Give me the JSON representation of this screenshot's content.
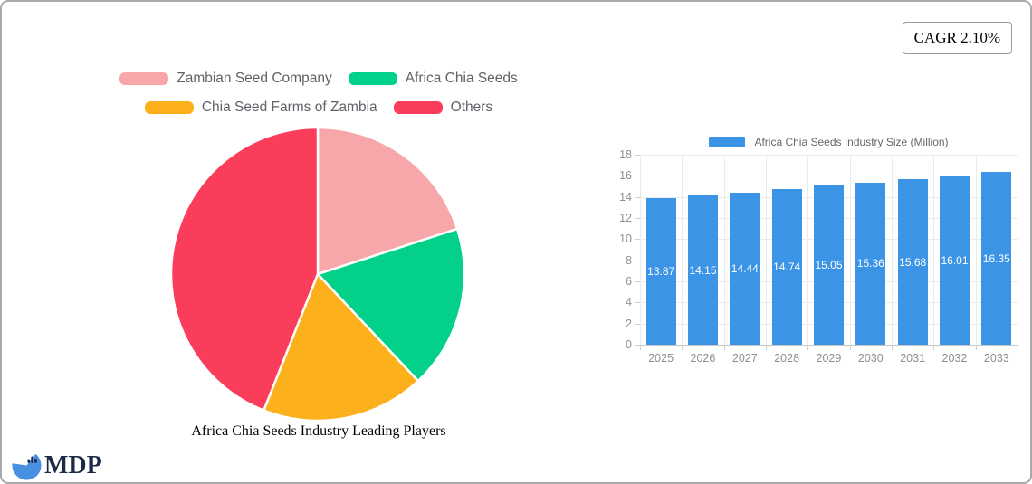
{
  "header": {
    "cagr_label": "CAGR 2.10%"
  },
  "brand": {
    "name": "MDP",
    "icon_color": "#4A90E2",
    "text_color": "#1B2B45"
  },
  "palette": {
    "bar_blue": "#3C94E7",
    "pie_pink": "#F7A6A9",
    "pie_green": "#04D189",
    "pie_orange": "#FCB01B",
    "pie_red": "#FB3D5C",
    "grid": "#EBEBEB",
    "axis_text": "#8F8F8F"
  },
  "chart_data": [
    {
      "type": "pie",
      "title": "Africa Chia Seeds Industry Leading Players",
      "categories": [
        "Zambian Seed Company",
        "Africa Chia Seeds",
        "Chia Seed Farms of Zambia",
        "Others"
      ],
      "values": [
        20,
        18,
        18,
        44
      ],
      "unit": "percent-share",
      "colors": [
        "#F7A6A9",
        "#04D189",
        "#FCB01B",
        "#FB3D5C"
      ],
      "start_angle_deg": 0,
      "direction": "clockwise",
      "legend_position": "top"
    },
    {
      "type": "bar",
      "series_label": "Africa Chia Seeds Industry Size (Million)",
      "categories": [
        "2025",
        "2026",
        "2027",
        "2028",
        "2029",
        "2030",
        "2031",
        "2032",
        "2033"
      ],
      "values": [
        13.87,
        14.15,
        14.44,
        14.74,
        15.05,
        15.36,
        15.68,
        16.01,
        16.35
      ],
      "ylim": [
        0,
        18
      ],
      "ytick_step": 2,
      "color": "#3C94E7",
      "grid": true,
      "legend_position": "top",
      "value_label_style": "white-inside-bar"
    }
  ]
}
